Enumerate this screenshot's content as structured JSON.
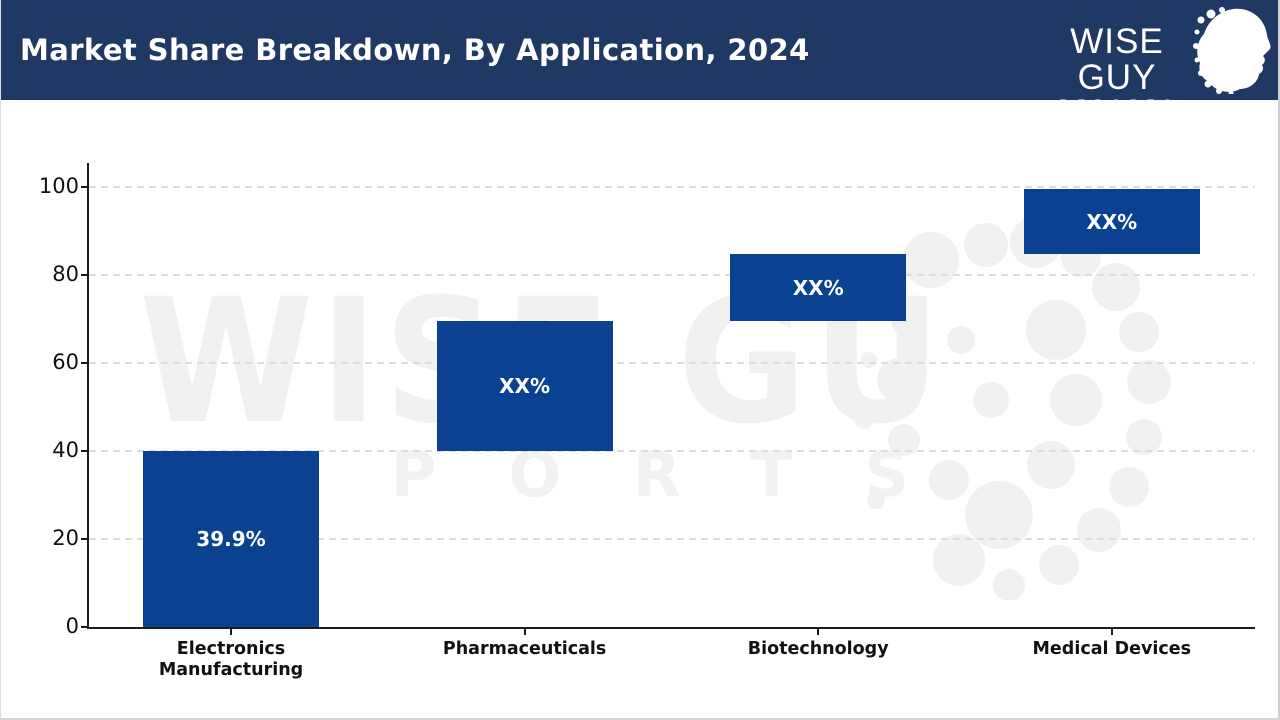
{
  "header": {
    "title": "Market Share Breakdown, By Application, 2024",
    "logo_line1": "WISE GUY",
    "logo_line2": "REPORTS",
    "bg_color": "#203864"
  },
  "watermark": {
    "line1": "WISE GU",
    "line2": "PORTS"
  },
  "chart_data": {
    "type": "bar",
    "subtype": "waterfall",
    "title": "Market Share Breakdown, By Application, 2024",
    "categories": [
      "Electronics Manufacturing",
      "Pharmaceuticals",
      "Biotechnology",
      "Medical Devices"
    ],
    "segments": [
      {
        "category": "Electronics Manufacturing",
        "start": 0,
        "end": 39.9,
        "label": "39.9%"
      },
      {
        "category": "Pharmaceuticals",
        "start": 39.9,
        "end": 69.5,
        "label": "XX%"
      },
      {
        "category": "Biotechnology",
        "start": 69.5,
        "end": 84.8,
        "label": "XX%"
      },
      {
        "category": "Medical Devices",
        "start": 84.8,
        "end": 99.5,
        "label": "XX%"
      }
    ],
    "yticks": [
      0,
      20,
      40,
      60,
      80,
      100
    ],
    "ylim": [
      0,
      105
    ],
    "xlabel": "",
    "ylabel": "",
    "bar_color": "#0a4190",
    "bar_label_color": "#ffffff",
    "grid": "horizontal-dashed",
    "legend_position": "none"
  }
}
